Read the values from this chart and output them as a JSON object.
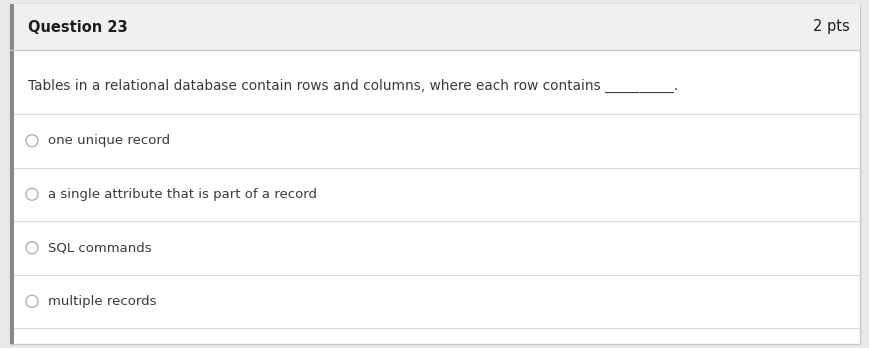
{
  "question_number": "Question 23",
  "points": "2 pts",
  "question_text": "Tables in a relational database contain rows and columns, where each row contains __________.",
  "options": [
    "one unique record",
    "a single attribute that is part of a record",
    "SQL commands",
    "multiple records"
  ],
  "header_bg": "#f0f0f0",
  "body_bg": "#ffffff",
  "border_color": "#c8c8c8",
  "divider_color": "#d8d8d8",
  "text_color": "#3a3a3a",
  "header_text_color": "#1e1e1e",
  "radio_color": "#b0b0b0",
  "left_accent_color": "#888888",
  "question_fontsize": 10.5,
  "points_fontsize": 10.5,
  "body_fontsize": 9.8,
  "option_fontsize": 9.5,
  "fig_width": 8.7,
  "fig_height": 3.48,
  "dpi": 100
}
